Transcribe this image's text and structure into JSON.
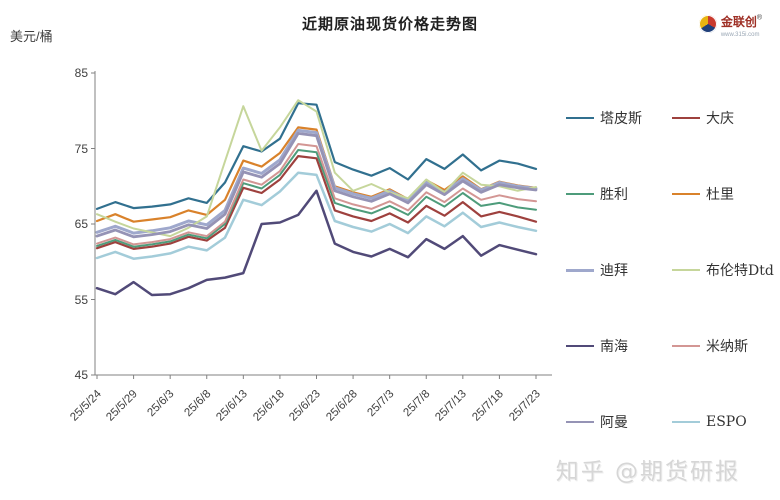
{
  "title": "近期原油现货价格走势图",
  "y_unit": "美元/桶",
  "logo": {
    "name": "金联创",
    "reg_mark": "®",
    "subtext": "www.315i.com"
  },
  "watermark": "知乎 @期货研报",
  "chart_data": {
    "type": "line",
    "title": "近期原油现货价格走势图",
    "ylabel": "美元/桶",
    "ylim": [
      45,
      85
    ],
    "y_ticks": [
      85,
      75,
      65,
      55,
      45
    ],
    "grid": false,
    "legend_position": "right",
    "x_labels": [
      "25/5/24",
      "25/5/29",
      "25/6/3",
      "25/6/8",
      "25/6/13",
      "25/6/18",
      "25/6/23",
      "25/6/28",
      "25/7/3",
      "25/7/8",
      "25/7/13",
      "25/7/18",
      "25/7/23"
    ],
    "samples_per_label_interval": 2,
    "series": [
      {
        "name": "塔皮斯",
        "color": "#31708F",
        "width": 2.2,
        "values": [
          67.0,
          67.9,
          67.1,
          67.3,
          67.6,
          68.4,
          67.8,
          70.5,
          75.3,
          74.6,
          76.3,
          81.0,
          80.8,
          73.2,
          72.2,
          71.4,
          72.4,
          70.9,
          73.6,
          72.3,
          74.2,
          72.1,
          73.4,
          73.0,
          72.3
        ]
      },
      {
        "name": "大庆",
        "color": "#9E413E",
        "width": 2.2,
        "values": [
          61.8,
          62.6,
          61.7,
          62.0,
          62.4,
          63.3,
          62.8,
          64.5,
          69.8,
          69.1,
          70.9,
          74.0,
          73.7,
          66.8,
          66.0,
          65.4,
          66.4,
          65.2,
          67.4,
          66.1,
          67.9,
          66.0,
          66.6,
          66.0,
          65.3
        ]
      },
      {
        "name": "胜利",
        "color": "#4E9C7B",
        "width": 2.0,
        "values": [
          62.1,
          62.9,
          62.0,
          62.3,
          62.7,
          63.6,
          63.1,
          65.0,
          70.4,
          69.7,
          71.5,
          74.8,
          74.5,
          67.8,
          67.0,
          66.4,
          67.4,
          66.2,
          68.6,
          67.3,
          69.1,
          67.4,
          67.8,
          67.2,
          66.9
        ]
      },
      {
        "name": "杜里",
        "color": "#D9822B",
        "width": 2.2,
        "values": [
          65.4,
          66.3,
          65.3,
          65.6,
          65.9,
          66.8,
          66.2,
          68.2,
          73.4,
          72.6,
          74.4,
          77.8,
          77.5,
          70.0,
          69.2,
          68.6,
          69.6,
          68.3,
          70.8,
          69.5,
          71.3,
          69.6,
          70.6,
          70.1,
          69.8
        ]
      },
      {
        "name": "迪拜",
        "color": "#9FA8CC",
        "width": 3.0,
        "values": [
          63.9,
          64.7,
          63.8,
          64.1,
          64.5,
          65.4,
          64.9,
          66.8,
          72.4,
          71.7,
          73.5,
          77.4,
          77.1,
          69.8,
          69.0,
          68.4,
          69.4,
          68.2,
          70.5,
          69.2,
          71.0,
          69.5,
          70.5,
          70.0,
          69.7
        ]
      },
      {
        "name": "布伦特Dtd",
        "color": "#C6D69B",
        "width": 2.0,
        "values": [
          66.3,
          65.3,
          64.4,
          63.9,
          63.4,
          64.5,
          66.0,
          73.3,
          80.6,
          74.7,
          77.8,
          81.4,
          79.9,
          71.8,
          69.4,
          70.3,
          69.2,
          68.4,
          70.9,
          69.2,
          71.8,
          70.2,
          70.0,
          69.4,
          69.9
        ]
      },
      {
        "name": "南海",
        "color": "#514A78",
        "width": 2.5,
        "values": [
          56.5,
          55.7,
          57.3,
          55.6,
          55.7,
          56.5,
          57.6,
          57.9,
          58.5,
          65.0,
          65.2,
          66.2,
          69.4,
          62.4,
          61.3,
          60.7,
          61.7,
          60.6,
          63.0,
          61.7,
          63.4,
          60.8,
          62.2,
          61.6,
          61.0
        ]
      },
      {
        "name": "米纳斯",
        "color": "#D39694",
        "width": 2.0,
        "values": [
          62.4,
          63.2,
          62.3,
          62.6,
          63.0,
          63.9,
          63.4,
          65.3,
          70.9,
          70.2,
          72.0,
          75.6,
          75.3,
          68.4,
          67.6,
          67.0,
          68.0,
          66.8,
          69.2,
          67.9,
          69.7,
          68.2,
          68.8,
          68.3,
          68.0
        ]
      },
      {
        "name": "阿曼",
        "color": "#9593B5",
        "width": 2.8,
        "values": [
          63.4,
          64.2,
          63.3,
          63.6,
          64.0,
          64.9,
          64.4,
          66.3,
          71.9,
          71.2,
          73.0,
          77.0,
          76.7,
          69.4,
          68.6,
          68.0,
          69.0,
          67.8,
          70.2,
          68.9,
          70.7,
          69.2,
          70.2,
          69.8,
          69.5
        ]
      },
      {
        "name": "ESPO",
        "color": "#A3CCD9",
        "width": 2.5,
        "values": [
          60.5,
          61.3,
          60.4,
          60.7,
          61.1,
          62.0,
          61.5,
          63.2,
          68.2,
          67.5,
          69.3,
          71.8,
          71.5,
          65.4,
          64.6,
          64.0,
          65.0,
          63.8,
          66.0,
          64.7,
          66.5,
          64.6,
          65.2,
          64.6,
          64.1
        ]
      }
    ]
  }
}
